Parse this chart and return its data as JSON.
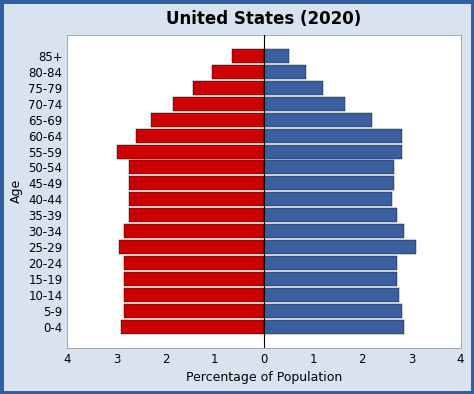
{
  "title": "United States (2020)",
  "xlabel": "Percentage of Population",
  "ylabel": "Age",
  "age_groups": [
    "0-4",
    "5-9",
    "10-14",
    "15-19",
    "20-24",
    "25-29",
    "30-34",
    "35-39",
    "40-44",
    "45-49",
    "50-54",
    "55-59",
    "60-64",
    "65-69",
    "70-74",
    "75-79",
    "80-84",
    "85+"
  ],
  "female_values": [
    2.9,
    2.85,
    2.85,
    2.85,
    2.85,
    2.95,
    2.85,
    2.75,
    2.75,
    2.75,
    2.75,
    3.0,
    2.6,
    2.3,
    1.85,
    1.45,
    1.05,
    0.65
  ],
  "male_values": [
    2.85,
    2.8,
    2.75,
    2.7,
    2.7,
    3.1,
    2.85,
    2.7,
    2.6,
    2.65,
    2.65,
    2.8,
    2.8,
    2.2,
    1.65,
    1.2,
    0.85,
    0.5
  ],
  "female_color": "#CC0000",
  "male_color": "#3A5FA0",
  "bg_color": "#FFFFFF",
  "outer_bg": "#D9E3F0",
  "xlim": 4,
  "title_fontsize": 12,
  "label_fontsize": 9,
  "tick_fontsize": 8.5
}
